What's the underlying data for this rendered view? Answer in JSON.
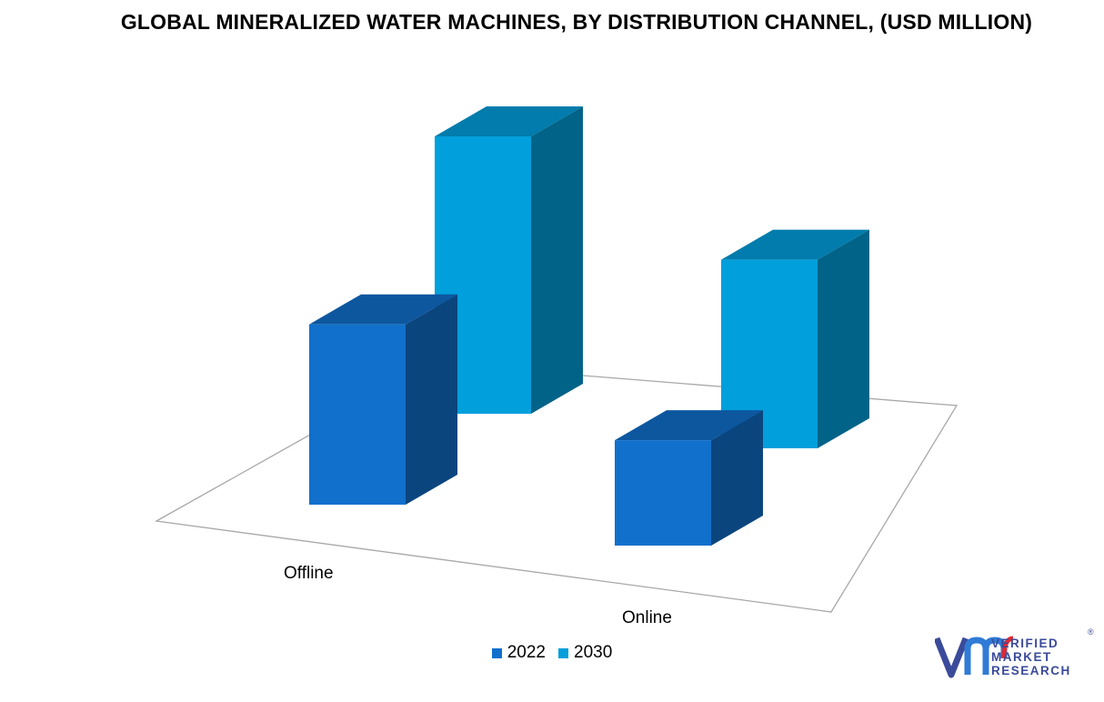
{
  "chart_data": {
    "type": "bar",
    "title": "GLOBAL MINERALIZED WATER MACHINES, BY DISTRIBUTION CHANNEL, (USD MILLION)",
    "categories": [
      "Offline",
      "Online"
    ],
    "series": [
      {
        "name": "2022",
        "values": [
          65,
          38
        ],
        "color": "#1170cc"
      },
      {
        "name": "2030",
        "values": [
          100,
          68
        ],
        "color": "#019fdc"
      }
    ],
    "ylim": [
      0,
      100
    ],
    "legend": "bottom",
    "grid": false
  },
  "logo": {
    "lines": [
      "VERIFIED",
      "MARKET",
      "RESEARCH"
    ],
    "reg": "®"
  }
}
